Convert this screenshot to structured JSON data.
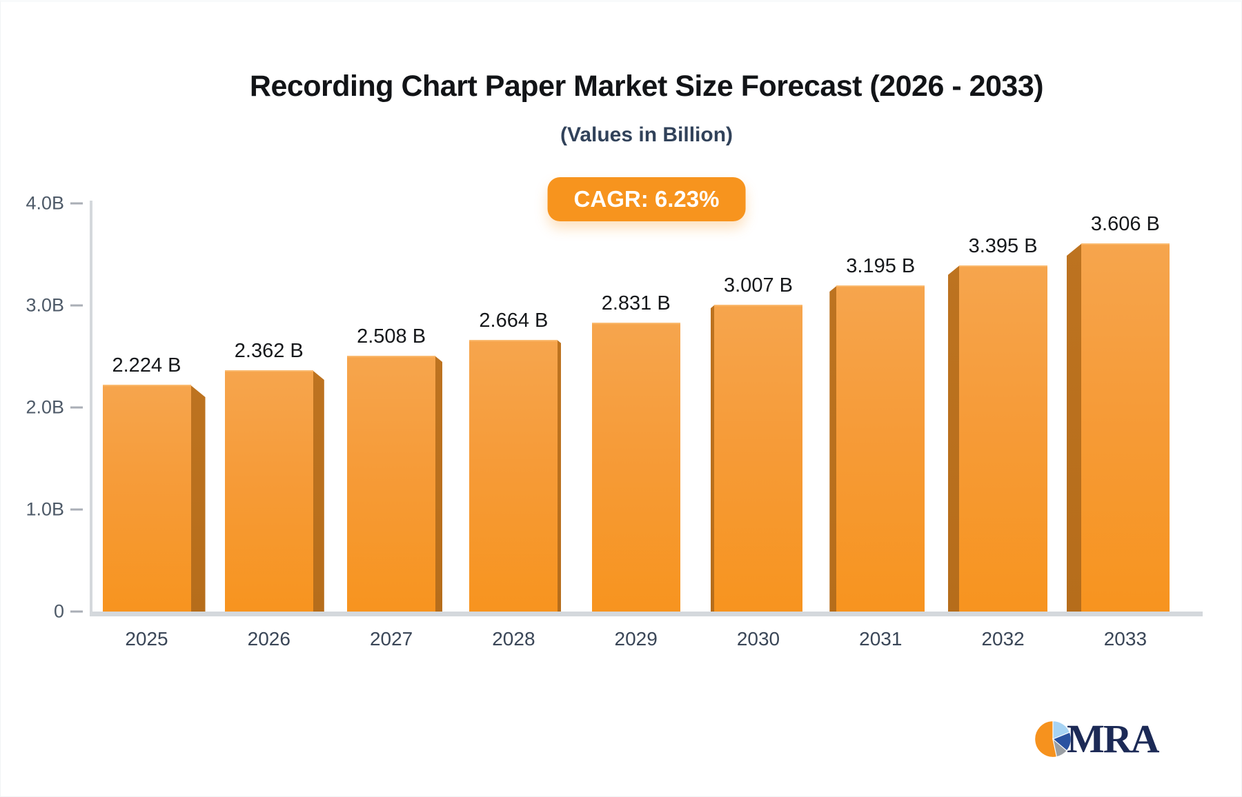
{
  "header": {
    "title": "Recording Chart Paper Market Size Forecast (2026 - 2033)",
    "subtitle": "(Values in Billion)",
    "cagr_badge": "CAGR: 6.23%"
  },
  "chart_data": {
    "type": "bar",
    "title": "Recording Chart Paper Market Size Forecast (2026 - 2033)",
    "subtitle": "(Values in Billion)",
    "categories": [
      "2025",
      "2026",
      "2027",
      "2028",
      "2029",
      "2030",
      "2031",
      "2032",
      "2033"
    ],
    "values": [
      2.224,
      2.362,
      2.508,
      2.664,
      2.831,
      3.007,
      3.195,
      3.395,
      3.606
    ],
    "value_labels": [
      "2.224 B",
      "2.362 B",
      "2.508 B",
      "2.664 B",
      "2.831 B",
      "3.007 B",
      "3.195 B",
      "3.395 B",
      "3.606 B"
    ],
    "xlabel": "",
    "ylabel": "",
    "ylim": [
      0,
      4
    ],
    "yticks": [
      {
        "value": 4,
        "label": "4.0B"
      },
      {
        "value": 3,
        "label": "3.0B"
      },
      {
        "value": 2,
        "label": "2.0B"
      },
      {
        "value": 1,
        "label": "1.0B"
      },
      {
        "value": 0,
        "label": "0"
      }
    ],
    "grid": false,
    "legend": false,
    "cagr": "6.23%",
    "colors": {
      "bar_face_top": "#f6a54d",
      "bar_face_bottom": "#f7941f",
      "bar_side": "#b96f1c",
      "axis": "#d4d8dc",
      "badge_background": "#f7941e",
      "badge_text": "#ffffff"
    }
  },
  "logo": {
    "text": "MRA",
    "text_color": "#1c2a56",
    "pie_colors": {
      "orange": "#f6921e",
      "light_blue": "#a7d3f3",
      "dark_blue": "#2a52a0",
      "gray": "#9a9fa4"
    }
  }
}
